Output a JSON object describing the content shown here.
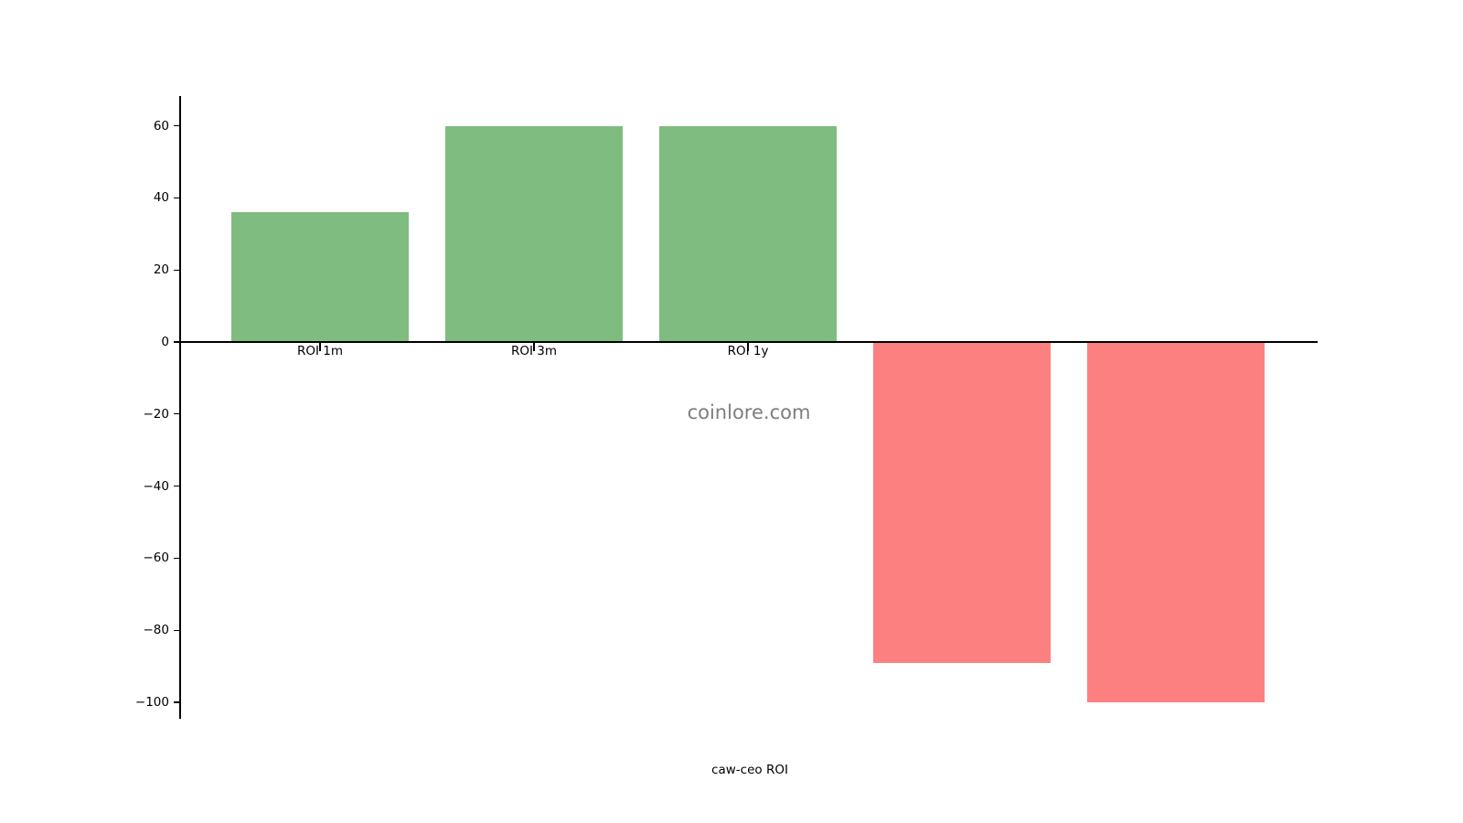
{
  "chart_data": {
    "type": "bar",
    "xlabel": "caw-ceo ROI",
    "watermark": "coinlore.com",
    "categories": [
      "ROI 1m",
      "ROI 3m",
      "ROI 1y",
      "",
      ""
    ],
    "values": [
      36,
      60,
      60,
      -89,
      -100
    ],
    "yticks": [
      {
        "value": 60,
        "label": "60"
      },
      {
        "value": 40,
        "label": "40"
      },
      {
        "value": 20,
        "label": "20"
      },
      {
        "value": 0,
        "label": "0"
      },
      {
        "value": -20,
        "label": "−20"
      },
      {
        "value": -40,
        "label": "−40"
      },
      {
        "value": -60,
        "label": "−60"
      },
      {
        "value": -80,
        "label": "−80"
      },
      {
        "value": -100,
        "label": "−100"
      }
    ],
    "ylim": [
      -110,
      68
    ],
    "grid": false,
    "legend": null,
    "colors": {
      "positive": "#7fbc7f",
      "negative": "#fc8080",
      "axis": "#000000",
      "watermark": "#7e7e7e"
    }
  }
}
